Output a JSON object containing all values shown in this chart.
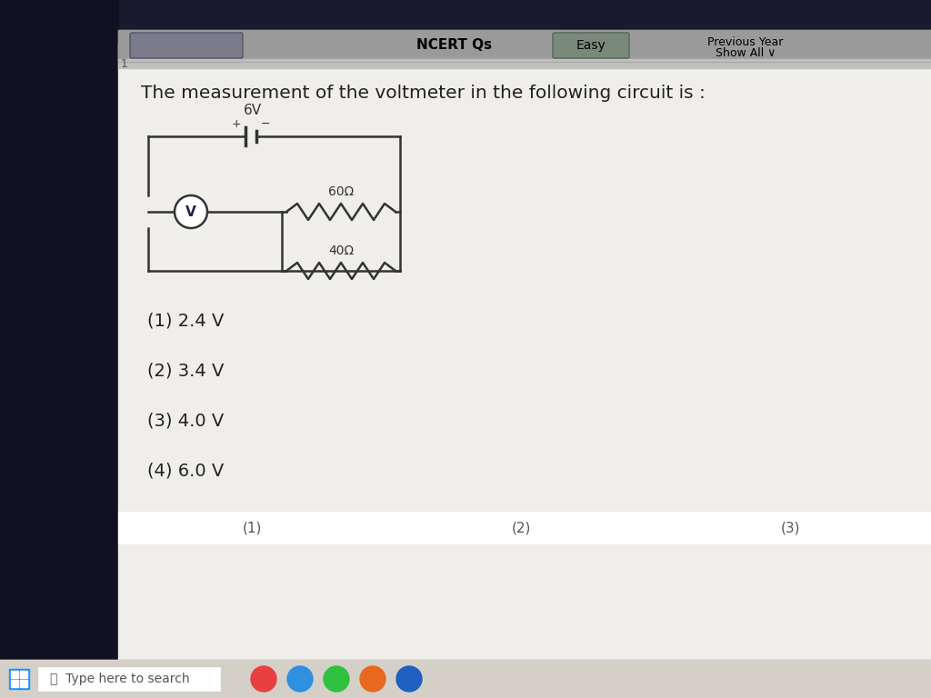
{
  "title": "The measurement of the voltmeter in the following circuit is :",
  "title_fontsize": 14.5,
  "bg_dark": "#1a1a2e",
  "bg_white": "#f0eeeb",
  "bg_content": "#ededea",
  "taskbar_color": "#c8c8c8",
  "taskbar_dark": "#2a2a2a",
  "options": [
    "(1) 2.4 V",
    "(2) 3.4 V",
    "(3) 4.0 V",
    "(4) 6.0 V"
  ],
  "option_fontsize": 14,
  "circuit": {
    "battery_label": "6V",
    "r1_label": "60Ω",
    "r2_label": "40Ω",
    "voltmeter_label": "V"
  },
  "header_bg": "#5a5a7a",
  "header_btn1": "#4a6fa5",
  "header_btn2": "#5a8a6a",
  "header_btn3": "#888888"
}
